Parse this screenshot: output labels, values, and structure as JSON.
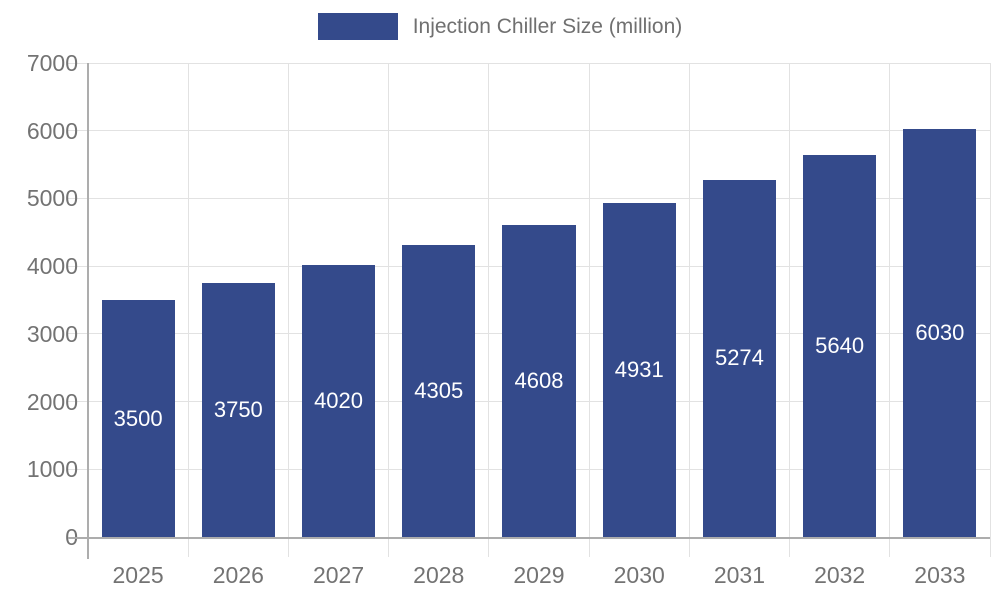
{
  "chart_data": {
    "type": "bar",
    "title": "",
    "legend": {
      "label": "Injection Chiller Size (million)",
      "position": "top-center"
    },
    "categories": [
      "2025",
      "2026",
      "2027",
      "2028",
      "2029",
      "2030",
      "2031",
      "2032",
      "2033"
    ],
    "values": [
      3500,
      3750,
      4020,
      4305,
      4608,
      4931,
      5274,
      5640,
      6030
    ],
    "value_labels": [
      "3500",
      "3750",
      "4020",
      "4305",
      "4608",
      "4931",
      "5274",
      "5640",
      "6030"
    ],
    "xlabel": "",
    "ylabel": "",
    "ylim": [
      0,
      7000
    ],
    "yticks": [
      0,
      1000,
      2000,
      3000,
      4000,
      5000,
      6000,
      7000
    ],
    "grid": true,
    "bar_width_fraction": 0.73,
    "colors": {
      "bar": "#344A8B",
      "grid": "#E2E2E2",
      "axis": "#ADADAD",
      "tick_label": "#737373",
      "value_label": "#FFFFFF",
      "legend_text": "#707070",
      "background": "#FFFFFF"
    }
  }
}
